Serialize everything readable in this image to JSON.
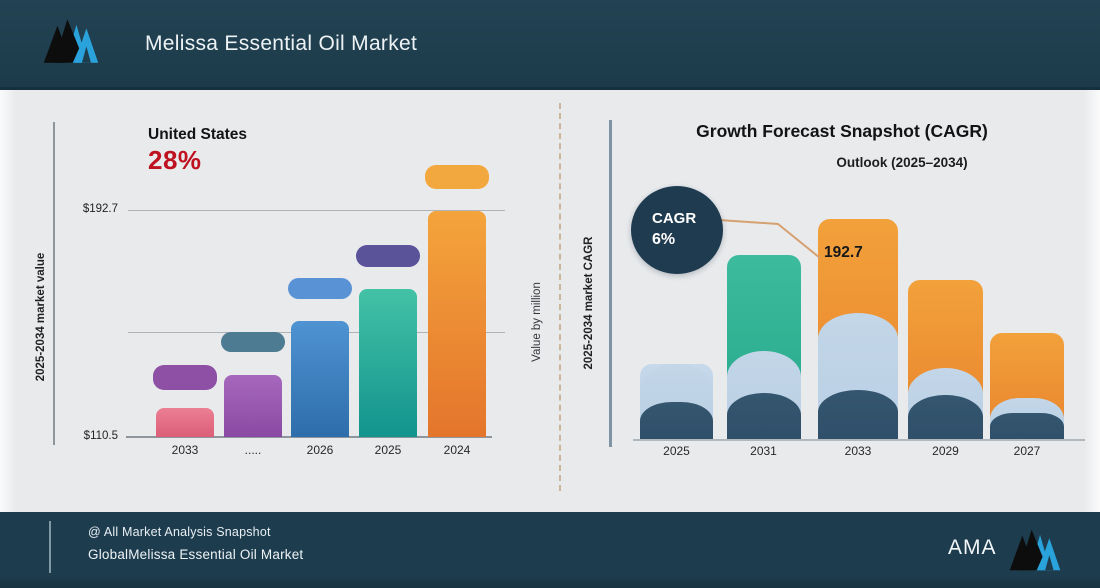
{
  "header": {
    "title": "Melissa Essential Oil Market"
  },
  "footer": {
    "line1": "@ All Market Analysis Snapshot",
    "line2": "GlobalMelissa Essential Oil Market",
    "brand": "AMA"
  },
  "colors": {
    "header_bg": "#1e3d4d",
    "accent_red": "#bf1220",
    "badge_navy": "#1e3b50",
    "logo_blue": "#2aa3dc",
    "divider_tan": "#c9ab90"
  },
  "chart_data": [
    {
      "type": "bar",
      "panel": "left",
      "title": "United States",
      "highlight": "28%",
      "ylabel": "2025-2034 market value",
      "ylabel_secondary": "Value by million",
      "yticks": [
        "$192.7",
        "$110.5"
      ],
      "ylim": [
        110.5,
        192.7
      ],
      "grid": true,
      "categories": [
        "2033",
        ".....",
        "2026",
        "2025",
        "2024"
      ],
      "series": [
        {
          "name": "market-value-bar",
          "values": [
            121.0,
            133.0,
            152.5,
            164.0,
            192.4
          ],
          "colors": [
            [
              "#ec7f93",
              "#db5e78"
            ],
            [
              "#a668bd",
              "#8a4aa4"
            ],
            [
              "#4f93d2",
              "#2e6dab"
            ],
            [
              "#43c2a6",
              "#12938d"
            ],
            [
              "#f4a43c",
              "#e4752c"
            ]
          ]
        },
        {
          "name": "floating-cap",
          "value_ranges": [
            [
              127.5,
              136.6
            ],
            [
              141.3,
              148.5
            ],
            [
              160.5,
              168.1
            ],
            [
              172.1,
              180.0
            ],
            [
              200.3,
              209.0
            ]
          ],
          "colors": [
            "#8d50a5",
            "#4d7b91",
            "#5a92d6",
            "#5b5399",
            "#f3a83f"
          ]
        }
      ]
    },
    {
      "type": "stacked-bar",
      "panel": "right",
      "title": "Growth Forecast Snapshot (CAGR)",
      "subtitle": "Outlook (2025–2034)",
      "ylabel": "2025-2034 market CAGR",
      "badge": {
        "label": "CAGR",
        "value": "6%"
      },
      "annotation": {
        "text": "192.7",
        "category": "2033"
      },
      "categories": [
        "2025",
        "2031",
        "2033",
        "2029",
        "2027"
      ],
      "series": [
        {
          "name": "base",
          "color": "#2f4f6a",
          "values": [
            33.1,
            41.0,
            43.6,
            39.2,
            23.5
          ]
        },
        {
          "name": "mid",
          "color": "#b9cfe4",
          "values": [
            33.2,
            36.6,
            67.1,
            23.6,
            13.1
          ]
        },
        {
          "name": "top",
          "values": [
            0,
            83.7,
            82.0,
            76.7,
            56.7
          ],
          "colors": [
            [
              "#c6d8ea",
              "#b9cfe4"
            ],
            [
              "#3cbc9c",
              "#26a78b"
            ],
            [
              "#f2a13b",
              "#e8832d"
            ],
            [
              "#f2a13b",
              "#e8832d"
            ],
            [
              "#f2a13b",
              "#e8832d"
            ]
          ]
        }
      ],
      "totals": [
        66.3,
        161.3,
        192.7,
        139.5,
        93.3
      ]
    }
  ]
}
